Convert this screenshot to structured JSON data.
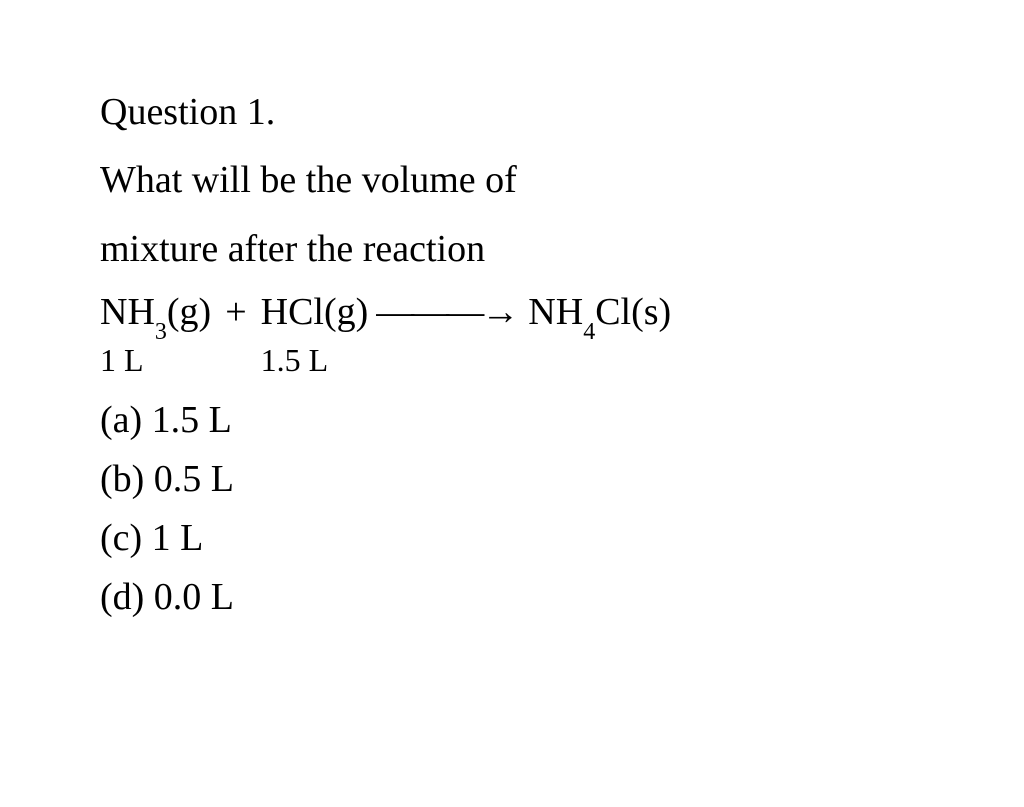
{
  "question": {
    "header": "Question 1.",
    "line1": "What will be the volume of",
    "line2": "mixture after the reaction"
  },
  "equation": {
    "reactant1": {
      "formula_prefix": "NH",
      "formula_sub": "3",
      "formula_suffix": "(g)",
      "volume": "1 L"
    },
    "plus": "+",
    "reactant2": {
      "formula_prefix": "HCl(g)",
      "formula_sub": "",
      "formula_suffix": "",
      "volume": "1.5 L"
    },
    "arrow": "———→",
    "product": {
      "formula_prefix": "NH",
      "formula_sub": "4",
      "formula_suffix": "Cl(s)"
    }
  },
  "options": {
    "a": "(a) 1.5 L",
    "b": "(b) 0.5 L",
    "c": "(c) 1 L",
    "d": "(d) 0.0 L"
  },
  "styling": {
    "background_color": "#ffffff",
    "text_color": "#000000",
    "main_fontsize": 38,
    "sub_fontsize": 24,
    "volume_fontsize": 32,
    "font_family": "Georgia, Times New Roman, serif"
  }
}
